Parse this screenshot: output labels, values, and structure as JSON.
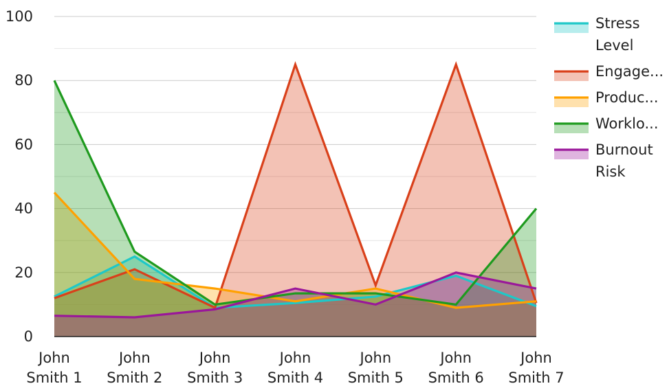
{
  "chart_data": {
    "type": "area",
    "categories": [
      "John Smith 1",
      "John Smith 2",
      "John Smith 3",
      "John Smith 4",
      "John Smith 5",
      "John Smith 6",
      "John Smith 7"
    ],
    "category_lines": [
      [
        "John",
        "Smith 1"
      ],
      [
        "John",
        "Smith 2"
      ],
      [
        "John",
        "Smith 3"
      ],
      [
        "John",
        "Smith 4"
      ],
      [
        "John",
        "Smith 5"
      ],
      [
        "John",
        "Smith 6"
      ],
      [
        "John",
        "Smith 7"
      ]
    ],
    "ylim": [
      0,
      100
    ],
    "yticks": [
      "0",
      "20",
      "40",
      "60",
      "80",
      "100"
    ],
    "grid": true,
    "legend_position": "right",
    "series": [
      {
        "name": "Stress Level",
        "legend_lines": [
          "Stress",
          "Level"
        ],
        "color": "#1ec8c8",
        "values": [
          12.5,
          25,
          9,
          10.5,
          12.5,
          19,
          9.5
        ]
      },
      {
        "name": "Engage...",
        "legend_lines": [
          "Engage..."
        ],
        "color": "#d9401a",
        "values": [
          12,
          21,
          9,
          85,
          16,
          85,
          10.5
        ]
      },
      {
        "name": "Produc...",
        "legend_lines": [
          "Produc..."
        ],
        "color": "#ffa100",
        "values": [
          45,
          18,
          15,
          11,
          15,
          9,
          11
        ]
      },
      {
        "name": "Worklo...",
        "legend_lines": [
          "Worklo..."
        ],
        "color": "#1e9a1e",
        "values": [
          80,
          26.5,
          10,
          13.5,
          13.5,
          10,
          40
        ]
      },
      {
        "name": "Burnout Risk",
        "legend_lines": [
          "Burnout",
          "Risk"
        ],
        "color": "#9a179a",
        "values": [
          6.5,
          6,
          8.5,
          15,
          10,
          20,
          15
        ]
      }
    ]
  }
}
